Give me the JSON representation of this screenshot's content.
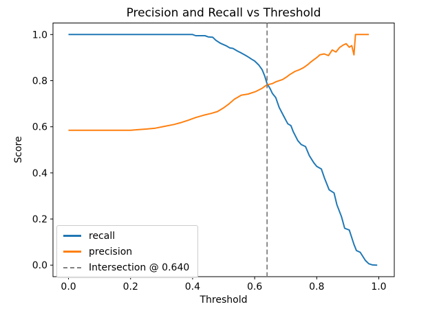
{
  "chart_data": {
    "type": "line",
    "title": "Precision and Recall vs Threshold",
    "xlabel": "Threshold",
    "ylabel": "Score",
    "xlim": [
      -0.05,
      1.05
    ],
    "ylim": [
      -0.05,
      1.05
    ],
    "xticks": [
      0.0,
      0.2,
      0.4,
      0.6,
      0.8,
      1.0
    ],
    "xtick_labels": [
      "0.0",
      "0.2",
      "0.4",
      "0.6",
      "0.8",
      "1.0"
    ],
    "yticks": [
      0.0,
      0.2,
      0.4,
      0.6,
      0.8,
      1.0
    ],
    "ytick_labels": [
      "0.0",
      "0.2",
      "0.4",
      "0.6",
      "0.8",
      "1.0"
    ],
    "grid": false,
    "legend_position": "lower-left",
    "intersection_x": 0.64,
    "colors": {
      "recall": "#1f77b4",
      "precision": "#ff7f0e",
      "intersection": "#7f7f7f",
      "spine": "#000000"
    },
    "series": [
      {
        "name": "recall",
        "color": "#1f77b4",
        "line_style": "solid",
        "points": [
          [
            0.0,
            1.0
          ],
          [
            0.05,
            1.0
          ],
          [
            0.1,
            1.0
          ],
          [
            0.15,
            1.0
          ],
          [
            0.2,
            1.0
          ],
          [
            0.25,
            1.0
          ],
          [
            0.3,
            1.0
          ],
          [
            0.35,
            1.0
          ],
          [
            0.4,
            1.0
          ],
          [
            0.41,
            0.995
          ],
          [
            0.44,
            0.995
          ],
          [
            0.45,
            0.99
          ],
          [
            0.465,
            0.988
          ],
          [
            0.475,
            0.975
          ],
          [
            0.49,
            0.962
          ],
          [
            0.51,
            0.95
          ],
          [
            0.52,
            0.942
          ],
          [
            0.53,
            0.94
          ],
          [
            0.545,
            0.928
          ],
          [
            0.557,
            0.92
          ],
          [
            0.57,
            0.91
          ],
          [
            0.58,
            0.902
          ],
          [
            0.59,
            0.893
          ],
          [
            0.6,
            0.885
          ],
          [
            0.613,
            0.868
          ],
          [
            0.624,
            0.848
          ],
          [
            0.632,
            0.822
          ],
          [
            0.64,
            0.787
          ],
          [
            0.65,
            0.765
          ],
          [
            0.657,
            0.745
          ],
          [
            0.668,
            0.726
          ],
          [
            0.679,
            0.684
          ],
          [
            0.694,
            0.645
          ],
          [
            0.702,
            0.625
          ],
          [
            0.707,
            0.613
          ],
          [
            0.717,
            0.605
          ],
          [
            0.724,
            0.58
          ],
          [
            0.739,
            0.54
          ],
          [
            0.75,
            0.523
          ],
          [
            0.764,
            0.514
          ],
          [
            0.776,
            0.475
          ],
          [
            0.79,
            0.445
          ],
          [
            0.8,
            0.428
          ],
          [
            0.815,
            0.417
          ],
          [
            0.825,
            0.378
          ],
          [
            0.84,
            0.327
          ],
          [
            0.856,
            0.313
          ],
          [
            0.865,
            0.262
          ],
          [
            0.88,
            0.21
          ],
          [
            0.89,
            0.16
          ],
          [
            0.905,
            0.152
          ],
          [
            0.92,
            0.09
          ],
          [
            0.928,
            0.063
          ],
          [
            0.94,
            0.056
          ],
          [
            0.957,
            0.02
          ],
          [
            0.968,
            0.006
          ],
          [
            0.98,
            0.001
          ],
          [
            0.995,
            0.0
          ]
        ]
      },
      {
        "name": "precision",
        "color": "#ff7f0e",
        "line_style": "solid",
        "points": [
          [
            0.0,
            0.585
          ],
          [
            0.05,
            0.585
          ],
          [
            0.1,
            0.585
          ],
          [
            0.15,
            0.585
          ],
          [
            0.2,
            0.585
          ],
          [
            0.22,
            0.587
          ],
          [
            0.25,
            0.59
          ],
          [
            0.28,
            0.594
          ],
          [
            0.31,
            0.602
          ],
          [
            0.34,
            0.61
          ],
          [
            0.36,
            0.617
          ],
          [
            0.385,
            0.628
          ],
          [
            0.41,
            0.64
          ],
          [
            0.435,
            0.65
          ],
          [
            0.46,
            0.658
          ],
          [
            0.48,
            0.666
          ],
          [
            0.5,
            0.682
          ],
          [
            0.515,
            0.697
          ],
          [
            0.535,
            0.72
          ],
          [
            0.557,
            0.737
          ],
          [
            0.579,
            0.742
          ],
          [
            0.602,
            0.752
          ],
          [
            0.624,
            0.767
          ],
          [
            0.64,
            0.782
          ],
          [
            0.657,
            0.787
          ],
          [
            0.668,
            0.795
          ],
          [
            0.69,
            0.805
          ],
          [
            0.702,
            0.815
          ],
          [
            0.713,
            0.826
          ],
          [
            0.73,
            0.84
          ],
          [
            0.745,
            0.848
          ],
          [
            0.757,
            0.856
          ],
          [
            0.77,
            0.868
          ],
          [
            0.78,
            0.88
          ],
          [
            0.79,
            0.89
          ],
          [
            0.802,
            0.902
          ],
          [
            0.81,
            0.912
          ],
          [
            0.824,
            0.916
          ],
          [
            0.838,
            0.909
          ],
          [
            0.85,
            0.933
          ],
          [
            0.862,
            0.924
          ],
          [
            0.874,
            0.944
          ],
          [
            0.886,
            0.955
          ],
          [
            0.895,
            0.96
          ],
          [
            0.905,
            0.945
          ],
          [
            0.913,
            0.952
          ],
          [
            0.92,
            0.912
          ],
          [
            0.925,
            1.0
          ],
          [
            0.968,
            1.0
          ]
        ]
      },
      {
        "name": "Intersection @ 0.640",
        "color": "#7f7f7f",
        "line_style": "dashed",
        "vline_x": 0.64
      }
    ]
  }
}
